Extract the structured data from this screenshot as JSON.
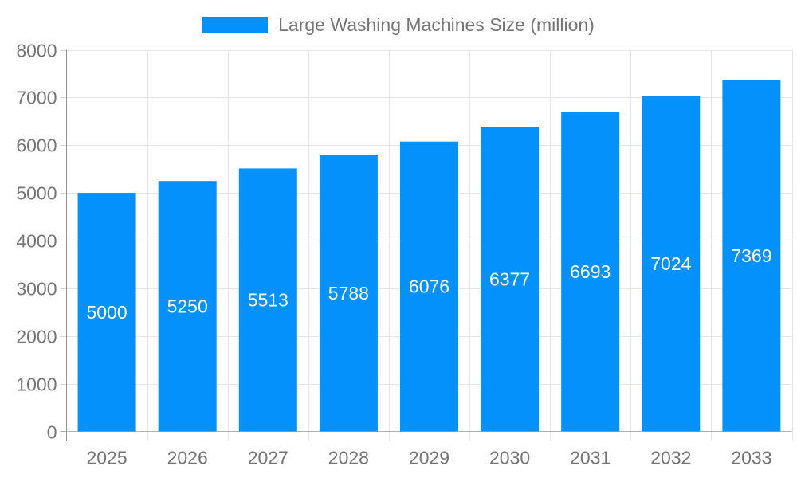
{
  "legend": {
    "label": "Large Washing Machines Size (million)"
  },
  "chart_data": {
    "type": "bar",
    "title": "Large Washing Machines Size (million)",
    "categories": [
      "2025",
      "2026",
      "2027",
      "2028",
      "2029",
      "2030",
      "2031",
      "2032",
      "2033"
    ],
    "values": [
      5000,
      5250,
      5513,
      5788,
      6076,
      6377,
      6693,
      7024,
      7369
    ],
    "xlabel": "",
    "ylabel": "",
    "ylim": [
      0,
      8000
    ],
    "ytick_step": 1000,
    "grid": true,
    "legend_position": "top",
    "colors": {
      "bar": "#0591fb",
      "bar_label": "#ffffff",
      "axis_text": "#757575",
      "gridline": "#e6e6e6",
      "y_axis_line": "#8f8f8f",
      "x_axis_line": "#b3b3b3",
      "tick": "#d9d9d9"
    }
  }
}
